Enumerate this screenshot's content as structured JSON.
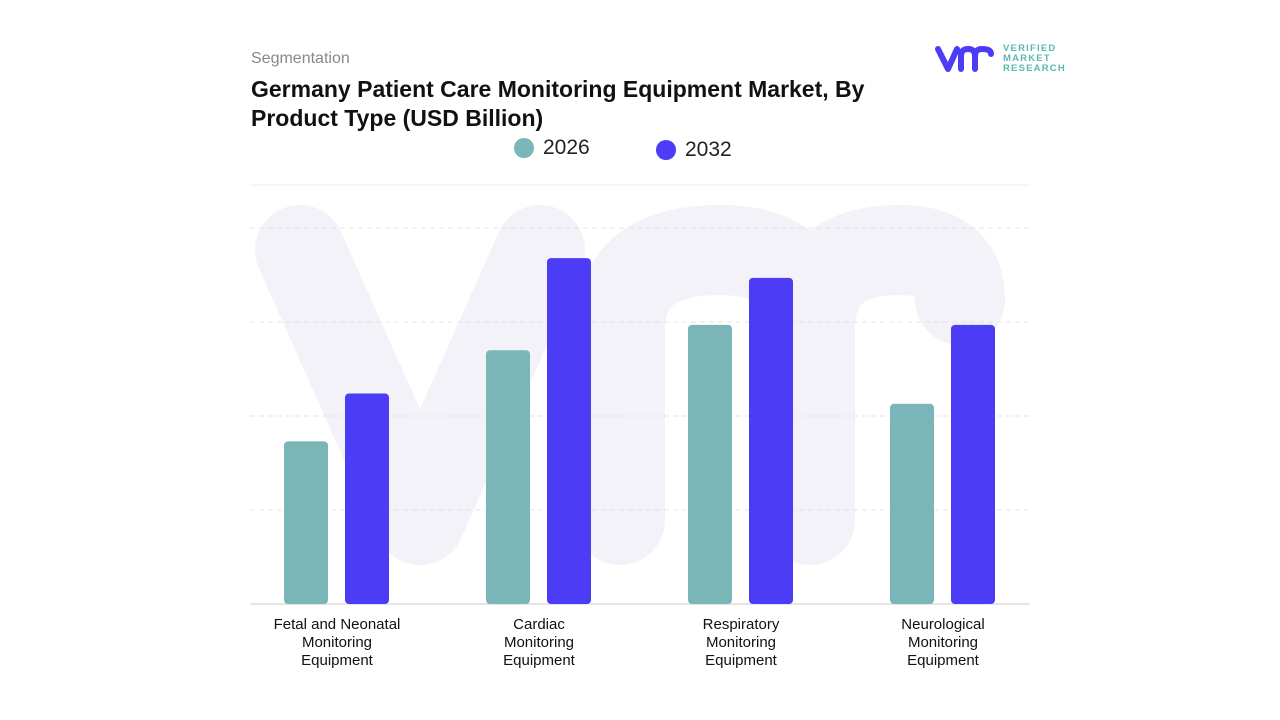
{
  "header": {
    "segment_label": "Segmentation",
    "title": "Germany Patient Care Monitoring Equipment Market, By Product Type (USD Billion)"
  },
  "logo": {
    "line1": "VERIFIED",
    "line2": "MARKET",
    "line3": "RESEARCH"
  },
  "chart_data": {
    "type": "bar",
    "title": "Germany Patient Care Monitoring Equipment Market, By Product Type (USD Billion)",
    "categories": [
      "Fetal and Neonatal Monitoring Equipment",
      "Cardiac Monitoring Equipment",
      "Respiratory Monitoring Equipment",
      "Neurological Monitoring Equipment"
    ],
    "series": [
      {
        "name": "2026",
        "color": "#7ab5b8",
        "values": [
          1.73,
          2.7,
          2.97,
          2.13
        ]
      },
      {
        "name": "2032",
        "color": "#4c3cf5",
        "values": [
          2.24,
          3.68,
          3.47,
          2.97
        ]
      }
    ],
    "ylim": [
      0,
      4
    ],
    "grid": true,
    "legend": "top-center",
    "note": "relative values; no y-axis printed"
  }
}
